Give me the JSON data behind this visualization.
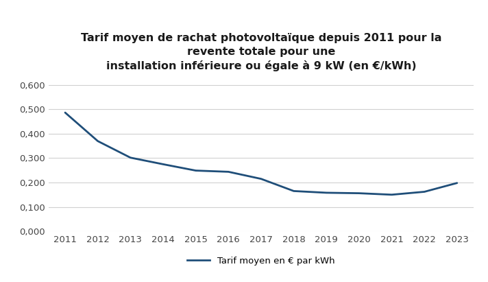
{
  "title": "Tarif moyen de rachat photovoltaïque depuis 2011 pour la\nrevente totale pour une\ninstallation inférieure ou égale à 9 kW (en €/kWh)",
  "years": [
    2011,
    2012,
    2013,
    2014,
    2015,
    2016,
    2017,
    2018,
    2019,
    2020,
    2021,
    2022,
    2023
  ],
  "values": [
    0.487,
    0.37,
    0.302,
    0.275,
    0.249,
    0.244,
    0.215,
    0.165,
    0.158,
    0.156,
    0.15,
    0.162,
    0.198
  ],
  "line_color": "#1f4e79",
  "ylim": [
    0.0,
    0.625
  ],
  "yticks": [
    0.0,
    0.1,
    0.2,
    0.3,
    0.4,
    0.5,
    0.6
  ],
  "ytick_labels": [
    "0,000",
    "0,100",
    "0,200",
    "0,300",
    "0,400",
    "0,500",
    "0,600"
  ],
  "legend_label": "Tarif moyen en € par kWh",
  "background_color": "#ffffff",
  "title_fontsize": 11.5,
  "tick_fontsize": 9.5,
  "legend_fontsize": 9.5,
  "grid_color": "#d0d0d0"
}
